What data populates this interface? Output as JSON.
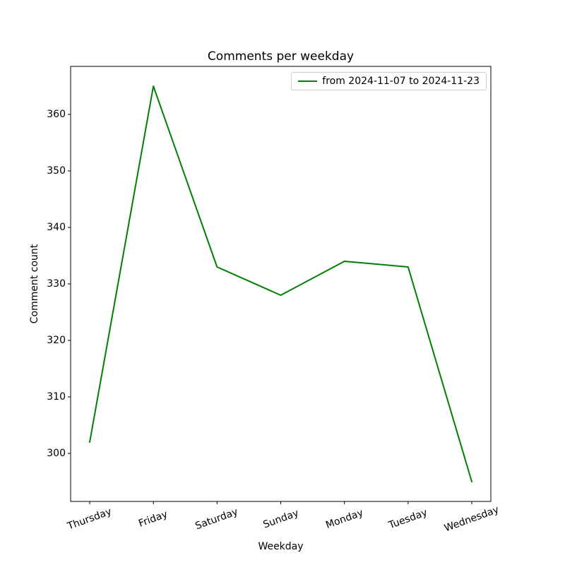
{
  "figure": {
    "background": "#ffffff",
    "text_color": "#000000"
  },
  "chart_data": {
    "type": "line",
    "title": "Comments per weekday",
    "xlabel": "Weekday",
    "ylabel": "Comment count",
    "categories": [
      "Thursday",
      "Friday",
      "Saturday",
      "Sunday",
      "Monday",
      "Tuesday",
      "Wednesday"
    ],
    "series": [
      {
        "name": "from 2024-11-07 to 2024-11-23",
        "color": "#008000",
        "values": [
          302,
          365,
          333,
          328,
          334,
          333,
          295
        ]
      }
    ],
    "yticks": [
      300,
      310,
      320,
      330,
      340,
      350,
      360
    ],
    "ylim": [
      291.5,
      368.5
    ],
    "x_tick_rotation": 20,
    "grid": false,
    "legend_position": "upper right",
    "axis_color": "#000000"
  }
}
